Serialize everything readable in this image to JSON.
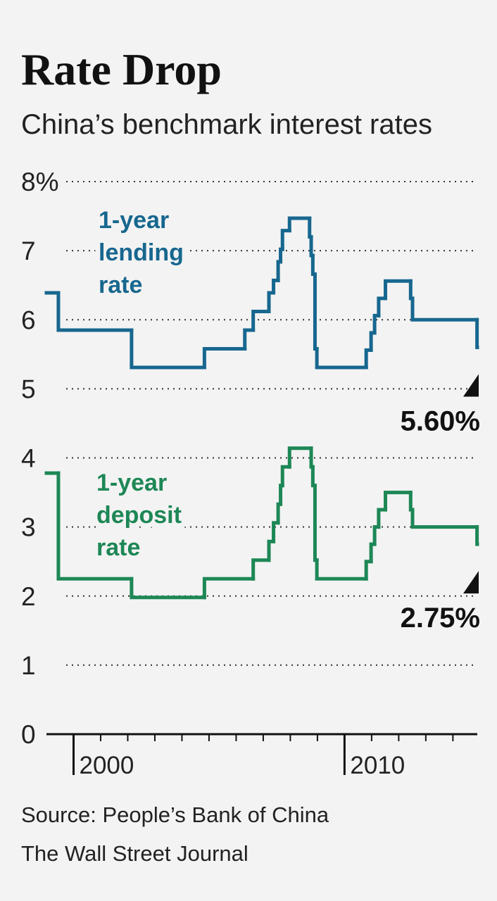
{
  "chart_data": {
    "type": "step",
    "title": "Rate Drop",
    "subtitle": "China’s benchmark interest rates",
    "source": "Source: People’s Bank of China",
    "credit": "The Wall Street Journal",
    "xlim": [
      1999.0,
      2014.9
    ],
    "xticks": [
      2000,
      2010
    ],
    "xminorticks": [
      2000,
      2001,
      2002,
      2003,
      2004,
      2005,
      2006,
      2007,
      2008,
      2009,
      2010,
      2011,
      2012,
      2013,
      2014
    ],
    "ylim": [
      0,
      8
    ],
    "yticks": [
      0,
      1,
      2,
      3,
      4,
      5,
      6,
      7,
      {
        "value": 8,
        "label": "8%"
      }
    ],
    "grid": true,
    "series": [
      {
        "name": "1-year lending rate",
        "color": "#17678f",
        "x": [
          1999.0,
          1999.44,
          2002.14,
          2004.83,
          2006.32,
          2006.63,
          2007.21,
          2007.38,
          2007.55,
          2007.64,
          2007.71,
          2007.97,
          2008.71,
          2008.77,
          2008.83,
          2008.91,
          2008.98,
          2010.8,
          2010.98,
          2011.11,
          2011.26,
          2011.51,
          2012.44,
          2012.51,
          2014.89
        ],
        "values": [
          6.39,
          5.85,
          5.31,
          5.58,
          5.85,
          6.12,
          6.39,
          6.57,
          6.84,
          7.02,
          7.29,
          7.47,
          7.2,
          6.93,
          6.66,
          5.58,
          5.31,
          5.56,
          5.81,
          6.06,
          6.31,
          6.56,
          6.31,
          6.0,
          5.6
        ],
        "value_labels": [
          null,
          null,
          null,
          null,
          null,
          null,
          null,
          null,
          null,
          null,
          null,
          null,
          null,
          null,
          null,
          null,
          null,
          null,
          null,
          null,
          null,
          null,
          null,
          null,
          "5.60%"
        ]
      },
      {
        "name": "1-year deposit rate",
        "color": "#1d8756",
        "x": [
          1999.0,
          1999.44,
          2002.14,
          2004.83,
          2006.63,
          2007.21,
          2007.38,
          2007.55,
          2007.64,
          2007.71,
          2007.97,
          2008.77,
          2008.83,
          2008.91,
          2008.98,
          2010.8,
          2010.98,
          2011.11,
          2011.26,
          2011.51,
          2012.44,
          2012.51,
          2014.89
        ],
        "values": [
          3.78,
          2.25,
          1.98,
          2.25,
          2.52,
          2.79,
          3.06,
          3.33,
          3.6,
          3.87,
          4.14,
          3.87,
          3.6,
          2.52,
          2.25,
          2.5,
          2.75,
          3.0,
          3.25,
          3.5,
          3.25,
          3.0,
          2.75
        ],
        "value_labels": [
          null,
          null,
          null,
          null,
          null,
          null,
          null,
          null,
          null,
          null,
          null,
          null,
          null,
          null,
          null,
          null,
          null,
          null,
          null,
          null,
          null,
          null,
          "2.75%"
        ]
      }
    ]
  }
}
